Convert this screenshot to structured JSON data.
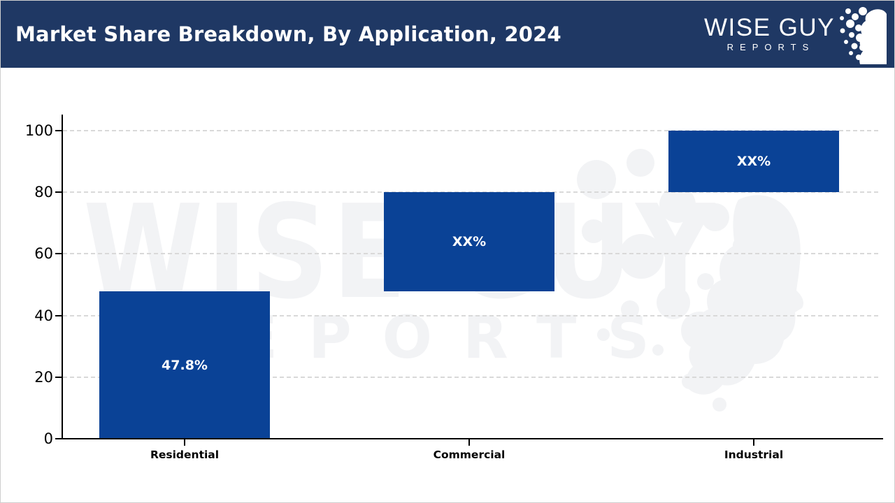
{
  "header": {
    "title": "Market Share Breakdown, By Application, 2024",
    "logo": {
      "line1": "WISE GUY",
      "line2": "REPORTS"
    }
  },
  "watermark": {
    "line1": "WISE GUY",
    "line2": "REPORTS"
  },
  "colors": {
    "header_bg": "#1f3864",
    "bar": "#0a4296",
    "grid": "#d9d9d9",
    "axis": "#000000",
    "bar_label": "#ffffff",
    "watermark": "#f2f3f5"
  },
  "chart_data": {
    "type": "bar",
    "subtype": "waterfall",
    "title": "Market Share Breakdown, By Application, 2024",
    "categories": [
      "Residential",
      "Commercial",
      "Industrial"
    ],
    "segments": [
      {
        "category": "Residential",
        "start": 0,
        "end": 47.8,
        "label": "47.8%"
      },
      {
        "category": "Commercial",
        "start": 47.8,
        "end": 80,
        "label": "XX%"
      },
      {
        "category": "Industrial",
        "start": 80,
        "end": 100,
        "label": "XX%"
      }
    ],
    "values_displayed": [
      "47.8%",
      "XX%",
      "XX%"
    ],
    "xlabel": "",
    "ylabel": "",
    "ylim": [
      0,
      100
    ],
    "yticks": [
      0,
      20,
      40,
      60,
      80,
      100
    ],
    "grid": "horizontal-dashed",
    "legend": "none"
  }
}
